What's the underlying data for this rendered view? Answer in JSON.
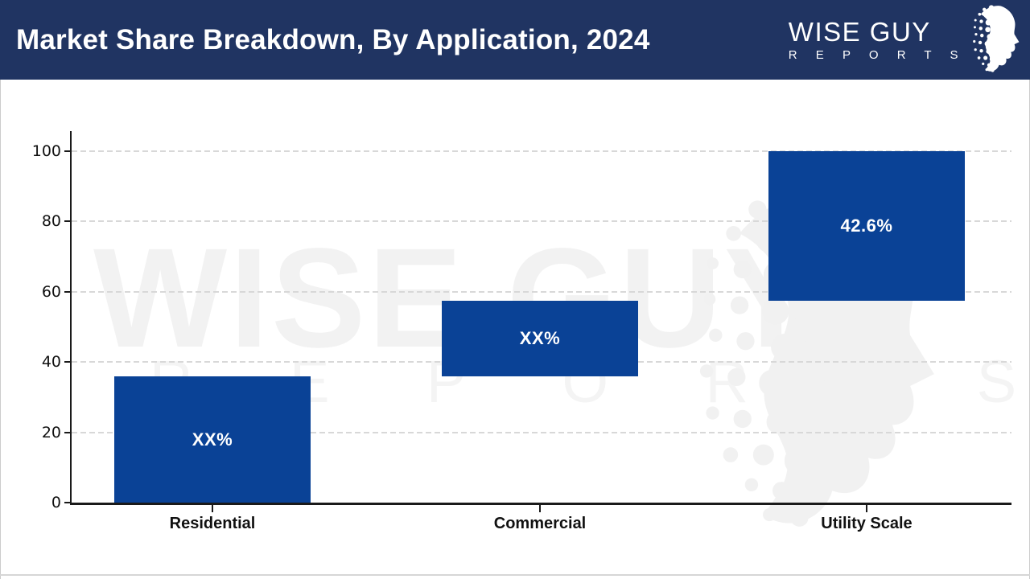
{
  "header": {
    "title": "Market Share Breakdown, By Application, 2024",
    "bg_color": "#203462",
    "logo": {
      "line1": "WISE GUY",
      "line2": "R E P O R T S"
    }
  },
  "watermark": {
    "line1": "WISE GUY",
    "line2": "R E P O R T S"
  },
  "chart_data": {
    "type": "bar",
    "subtype": "waterfall-breakdown",
    "title": "Market Share Breakdown, By Application, 2024",
    "categories": [
      "Residential",
      "Commercial",
      "Utility Scale"
    ],
    "bars": [
      {
        "category": "Residential",
        "start": 0,
        "end": 35.9,
        "label": "XX%"
      },
      {
        "category": "Commercial",
        "start": 35.9,
        "end": 57.4,
        "label": "XX%"
      },
      {
        "category": "Utility Scale",
        "start": 57.4,
        "end": 100,
        "label": "42.6%"
      }
    ],
    "xlabel": "",
    "ylabel": "",
    "yticks": [
      0,
      20,
      40,
      60,
      80,
      100
    ],
    "ylim": [
      0,
      105.7
    ],
    "grid": "horizontal-dashed",
    "legend": null,
    "bar_color": "#0a4296",
    "grid_color": "#d8d8d8",
    "axis_color": "#1a1a1a"
  }
}
